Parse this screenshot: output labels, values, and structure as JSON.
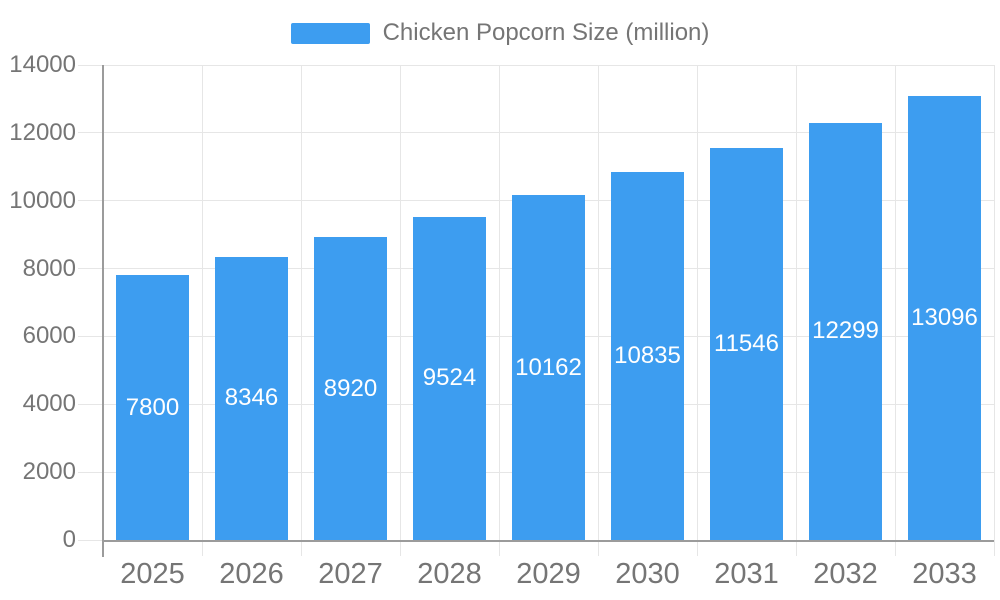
{
  "legend": {
    "label": "Chicken Popcorn Size (million)"
  },
  "chart_data": {
    "type": "bar",
    "title": "Chicken Popcorn Size (million)",
    "series": [
      {
        "name": "Chicken Popcorn Size (million)",
        "values": [
          7800,
          8346,
          8920,
          9524,
          10162,
          10835,
          11546,
          12299,
          13096
        ]
      }
    ],
    "categories": [
      "2025",
      "2026",
      "2027",
      "2028",
      "2029",
      "2030",
      "2031",
      "2032",
      "2033"
    ],
    "bar_value_labels": [
      "7800",
      "8346",
      "8920",
      "9524",
      "10162",
      "10835",
      "11546",
      "12299",
      "13096"
    ],
    "xlabel": "",
    "ylabel": "",
    "ylim": [
      0,
      14000
    ],
    "ytick_step": 2000,
    "ytick_labels": [
      "0",
      "2000",
      "4000",
      "6000",
      "8000",
      "10000",
      "12000",
      "14000"
    ],
    "grid": "horizontal-and-vertical",
    "legend_position": "top-center",
    "bar_label_position": "inside-center"
  },
  "colors": {
    "bar": "#3D9DF0",
    "bar_label": "#FFFFFF",
    "axis_text": "#757575",
    "grid_line": "#E6E6E6",
    "axis_line": "#9B9B9B",
    "background": "#FFFFFF"
  }
}
